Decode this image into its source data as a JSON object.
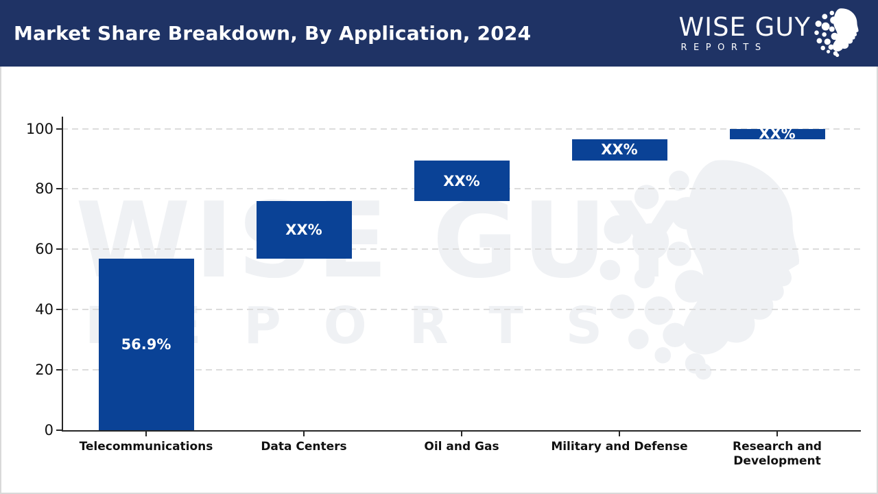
{
  "header": {
    "title": "Market Share Breakdown, By Application, 2024",
    "bg_color": "#1f3365",
    "logo": {
      "line1": "WISE GUY",
      "line2": "REPORTS"
    }
  },
  "watermark": {
    "line1": "WISE GUY",
    "line2": "REPORTS",
    "color": "#eff1f4"
  },
  "chart_data": {
    "type": "bar",
    "subtype": "waterfall",
    "title": "Market Share Breakdown, By Application, 2024",
    "xlabel": "",
    "ylabel": "",
    "categories": [
      "Telecommunications",
      "Data Centers",
      "Oil and Gas",
      "Military and Defense",
      "Research and Development"
    ],
    "segments": [
      {
        "category": "Telecommunications",
        "start": 0,
        "end": 56.9,
        "label": "56.9%"
      },
      {
        "category": "Data Centers",
        "start": 56.9,
        "end": 75.9,
        "label": "XX%"
      },
      {
        "category": "Oil and Gas",
        "start": 75.9,
        "end": 89.5,
        "label": "XX%"
      },
      {
        "category": "Military and Defense",
        "start": 89.5,
        "end": 96.5,
        "label": "XX%"
      },
      {
        "category": "Research and Development",
        "start": 96.5,
        "end": 100,
        "label": "XX%"
      }
    ],
    "yticks": [
      0,
      20,
      40,
      60,
      80,
      100
    ],
    "ylim": [
      0,
      105
    ],
    "grid": "horizontal dashed",
    "legend": "none",
    "bar_color": "#0a4296",
    "bar_label_color": "#ffffff",
    "axis_color": "#262626",
    "gridline_color": "#dcdcdc"
  }
}
